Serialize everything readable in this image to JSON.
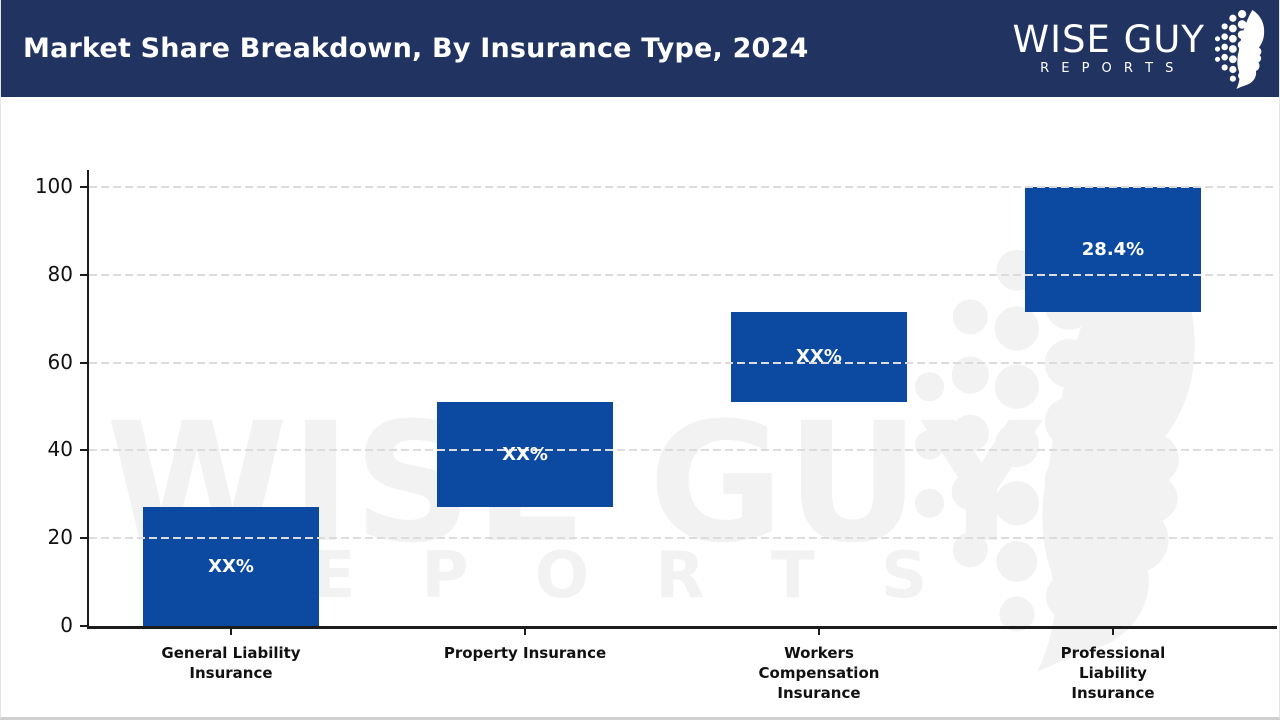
{
  "header": {
    "title": "Market Share Breakdown, By Insurance Type, 2024",
    "logo": {
      "wordmark": "WISE GUY",
      "subtext": "R E P O R T S",
      "face_icon": "dotted-head-profile-icon"
    }
  },
  "watermark": {
    "line1": "WISE GUY",
    "line2": "R E P O R T S",
    "face_icon": "dotted-head-profile-icon"
  },
  "colors": {
    "header_bg": "#213361",
    "bar": "#0b4aa0",
    "bar_label": "#ffffff",
    "grid": "#dcdcdc",
    "axis": "#1c1c1c",
    "watermark": "#f2f2f2",
    "title_text": "#ffffff"
  },
  "chart_data": {
    "type": "bar",
    "subtype": "floating-waterfall",
    "title": "Market Share Breakdown, By Insurance Type, 2024",
    "categories": [
      "General Liability Insurance",
      "Property Insurance",
      "Workers Compensation Insurance",
      "Professional Liability Insurance"
    ],
    "category_label_lines": [
      [
        "General Liability",
        "Insurance"
      ],
      [
        "Property Insurance"
      ],
      [
        "Workers",
        "Compensation",
        "Insurance"
      ],
      [
        "Professional",
        "Liability",
        "Insurance"
      ]
    ],
    "bars": [
      {
        "start": 0,
        "end": 27.1,
        "value": 27.1,
        "label": "XX%"
      },
      {
        "start": 27.1,
        "end": 51.0,
        "value": 23.9,
        "label": "XX%"
      },
      {
        "start": 51.0,
        "end": 71.6,
        "value": 20.6,
        "label": "XX%"
      },
      {
        "start": 71.6,
        "end": 100.0,
        "value": 28.4,
        "label": "28.4%"
      }
    ],
    "xlabel": "",
    "ylabel": "",
    "ylim": [
      0,
      100
    ],
    "yticks": [
      0,
      20,
      40,
      60,
      80,
      100
    ],
    "grid": "dashed-horizontal-over-bars",
    "legend": "none"
  }
}
